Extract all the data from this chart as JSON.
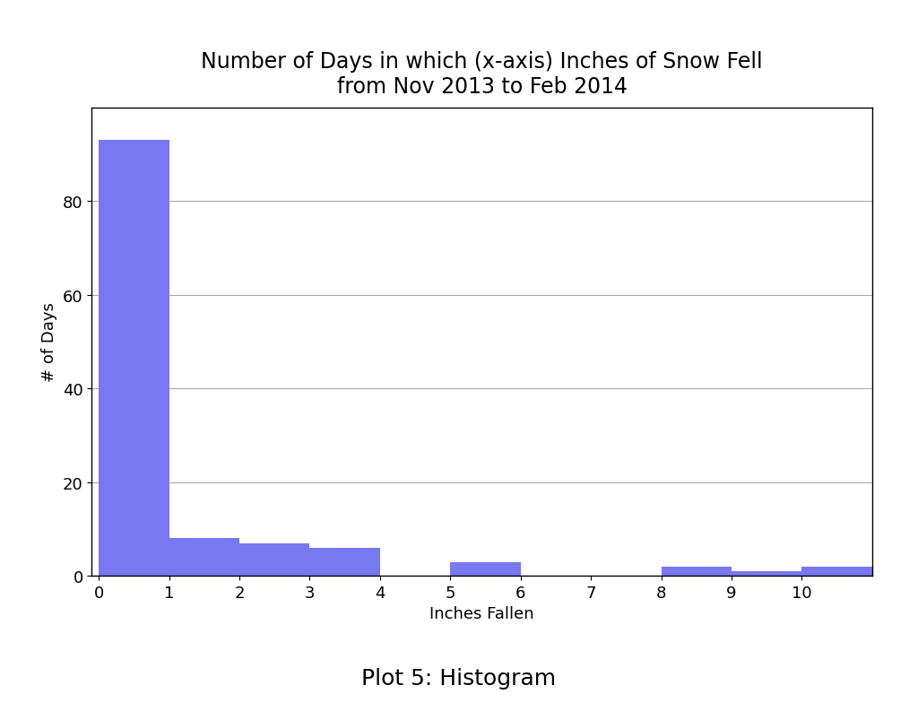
{
  "title": "Number of Days in which (x-axis) Inches of Snow Fell\nfrom Nov 2013 to Feb 2014",
  "xlabel": "Inches Fallen",
  "ylabel": "# of Days",
  "caption": "Plot 5: Histogram",
  "bar_color": "#7878f0",
  "bin_edges": [
    0,
    1,
    2,
    3,
    4,
    5,
    6,
    7,
    8,
    9,
    10,
    11
  ],
  "bar_heights": [
    93,
    8,
    7,
    6,
    0,
    3,
    0,
    0,
    2,
    1,
    2
  ],
  "xtick_positions": [
    0,
    1,
    2,
    3,
    4,
    5,
    6,
    7,
    8,
    9,
    10
  ],
  "xtick_labels": [
    "0",
    "1",
    "2",
    "3",
    "4",
    "5",
    "6",
    "7",
    "8",
    "9",
    "10"
  ],
  "yticks": [
    0,
    20,
    40,
    60,
    80
  ],
  "ylim": [
    0,
    100
  ],
  "xlim": [
    -0.1,
    11.0
  ],
  "grid_color": "#aaaaaa",
  "title_fontsize": 17,
  "axis_label_fontsize": 13,
  "tick_fontsize": 13,
  "caption_fontsize": 18,
  "background_color": "#ffffff",
  "bar_width": 1.0
}
